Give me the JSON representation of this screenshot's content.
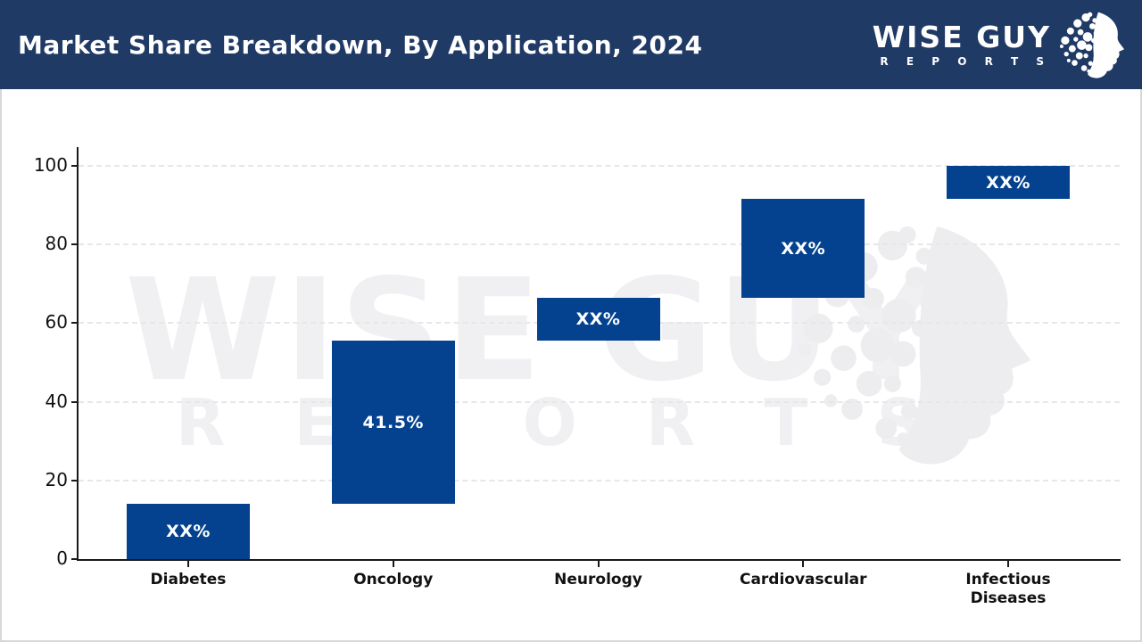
{
  "header": {
    "title": "Market Share Breakdown, By Application, 2024",
    "logo": {
      "name": "WISE GUY",
      "reports": "R E P O R T S"
    }
  },
  "watermark": {
    "line1": "WISE GUY",
    "line2": "R E P O R T S"
  },
  "colors": {
    "header_bg": "#203a66",
    "bar": "#04428f",
    "axis": "#1a1a1a",
    "grid": "#e7e7e7",
    "watermark": "#f0f0f2",
    "card_border": "#d8d8d8"
  },
  "chart_data": {
    "type": "bar",
    "subtype": "waterfall",
    "title": "Market Share Breakdown, By Application, 2024",
    "categories": [
      "Diabetes",
      "Oncology",
      "Neurology",
      "Cardiovascular",
      "Infectious\nDiseases"
    ],
    "bars": [
      {
        "category": "Diabetes",
        "start": 0,
        "end": 14,
        "label": "XX%"
      },
      {
        "category": "Oncology",
        "start": 14,
        "end": 55.5,
        "label": "41.5%"
      },
      {
        "category": "Neurology",
        "start": 55.5,
        "end": 66.5,
        "label": "XX%"
      },
      {
        "category": "Cardiovascular",
        "start": 66.5,
        "end": 91.5,
        "label": "XX%"
      },
      {
        "category": "Infectious Diseases",
        "start": 91.5,
        "end": 100,
        "label": "XX%"
      }
    ],
    "yticks": [
      0,
      20,
      40,
      60,
      80,
      100
    ],
    "ylim": [
      0,
      105
    ],
    "xlabel": "",
    "ylabel": "",
    "grid": "horizontal-dashed",
    "legend": "none",
    "bar_color": "#04428f"
  }
}
